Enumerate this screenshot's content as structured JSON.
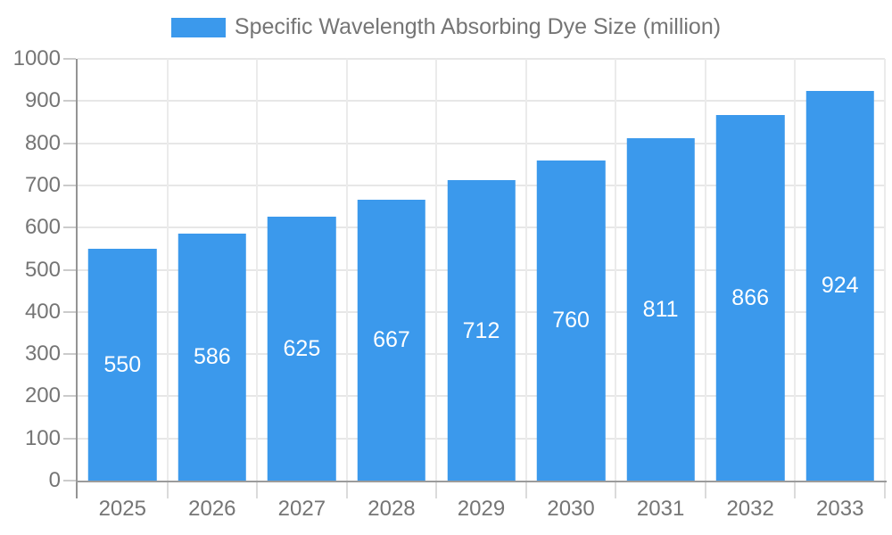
{
  "chart_data": {
    "type": "bar",
    "title": "Specific Wavelength Absorbing Dye Size (million)",
    "categories": [
      "2025",
      "2026",
      "2027",
      "2028",
      "2029",
      "2030",
      "2031",
      "2032",
      "2033"
    ],
    "series": [
      {
        "name": "Specific Wavelength Absorbing Dye Size (million)",
        "values": [
          550,
          586,
          625,
          667,
          712,
          760,
          811,
          866,
          924
        ]
      }
    ],
    "values": [
      550,
      586,
      625,
      667,
      712,
      760,
      811,
      866,
      924
    ],
    "value_labels": "inside-middle",
    "xlabel": "",
    "ylabel": "",
    "ylim": [
      0,
      1000
    ],
    "yticks": [
      0,
      100,
      200,
      300,
      400,
      500,
      600,
      700,
      800,
      900,
      1000
    ],
    "grid": true,
    "legend_position": "top-center",
    "colors": {
      "bar": "#3B99EC",
      "axis_text": "#757575",
      "legend_text": "#757575",
      "value_text": "#FFFFFF",
      "gridline": "#E7E7E7",
      "axis_line": "#949494",
      "tick": "#CBCBCB",
      "background": "#FFFFFF"
    }
  }
}
